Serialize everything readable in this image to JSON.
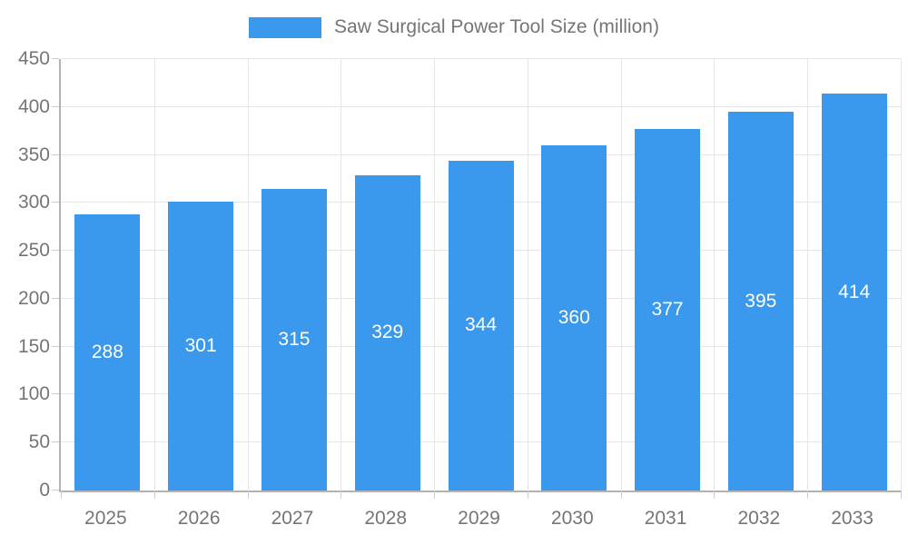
{
  "legend": {
    "label": "Saw Surgical Power Tool Size (million)"
  },
  "chart_data": {
    "type": "bar",
    "title": "Saw Surgical Power Tool Size (million)",
    "categories": [
      "2025",
      "2026",
      "2027",
      "2028",
      "2029",
      "2030",
      "2031",
      "2032",
      "2033"
    ],
    "values": [
      288,
      301,
      315,
      329,
      344,
      360,
      377,
      395,
      414
    ],
    "xlabel": "",
    "ylabel": "",
    "ylim": [
      0,
      450
    ],
    "ytick_step": 50,
    "grid": true,
    "legend_position": "top",
    "bar_labels_shown": true,
    "bar_label_position": "center"
  },
  "colors": {
    "bar": "#3a99ec",
    "bar_label": "#ffffff",
    "axis_text": "#757575",
    "gridline": "#e6e6e6",
    "axis_line": "#b3b3b3",
    "tick": "#cccccc"
  }
}
